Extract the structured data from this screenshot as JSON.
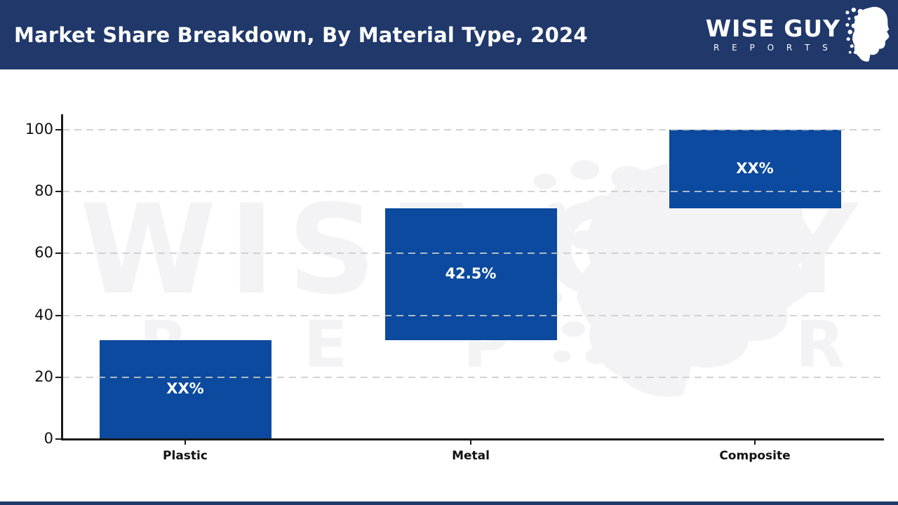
{
  "header": {
    "title": "Market Share Breakdown, By Material Type, 2024",
    "brand": {
      "name_line": "WISE GUY",
      "reports_line": "R E P O R T S"
    }
  },
  "watermark": {
    "line1": "WISE GUY",
    "line2": "R E P O R T S"
  },
  "chart_data": {
    "type": "bar",
    "subtype": "floating-segment-waterfall",
    "title": "Market Share Breakdown, By Material Type, 2024",
    "categories": [
      "Plastic",
      "Metal",
      "Composite"
    ],
    "segments": [
      {
        "category": "Plastic",
        "start": 0,
        "end": 32,
        "value_label": "XX%"
      },
      {
        "category": "Metal",
        "start": 32,
        "end": 74.5,
        "value_label": "42.5%"
      },
      {
        "category": "Composite",
        "start": 74.5,
        "end": 100,
        "value_label": "XX%"
      }
    ],
    "values": [
      32,
      42.5,
      25.5
    ],
    "ylim": [
      0,
      100
    ],
    "yticks": [
      0,
      20,
      40,
      60,
      80,
      100
    ],
    "xlabel": "",
    "ylabel": "",
    "grid": {
      "horizontal": true,
      "style": "dashed",
      "drawn_above_bars": true
    },
    "legend": "none",
    "bar_color": "#0B4A9E",
    "bar_label_color": "#FFFFFF"
  },
  "colors": {
    "header_bg": "#20386A",
    "footer_bg": "#20386A",
    "bar": "#0B4A9E",
    "axis": "#1A1A1A",
    "gridline": "#D9D9D9",
    "watermark": "#F3F3F6",
    "title_text": "#FFFFFF",
    "tick_text": "#111111"
  }
}
